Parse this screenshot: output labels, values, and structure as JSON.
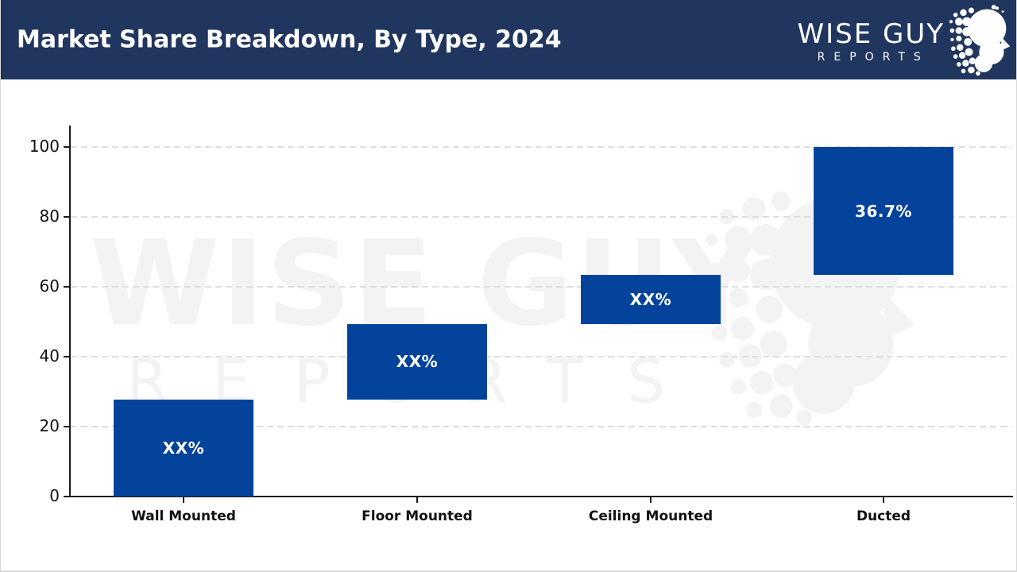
{
  "header": {
    "title": "Market Share Breakdown, By Type, 2024"
  },
  "logo": {
    "line1": "WISE GUY",
    "line2": "REPORTS",
    "icon": "dotted-face-profile-icon"
  },
  "watermark": {
    "line1": "WISE GUY",
    "line2": "REPORTS",
    "icon": "dotted-face-profile-icon"
  },
  "colors": {
    "header_bg": "#21365E",
    "bar": "#04439B",
    "grid": "#dedede",
    "axis": "#1a1a1a",
    "watermark": "#f3f3f3",
    "bar_label_text": "#ffffff",
    "title_text": "#ffffff"
  },
  "chart_data": {
    "type": "bar",
    "style": "waterfall",
    "title": "Market Share Breakdown, By Type, 2024",
    "categories": [
      "Wall Mounted",
      "Floor Mounted",
      "Ceiling Mounted",
      "Ducted"
    ],
    "segments": [
      {
        "category": "Wall Mounted",
        "start": 0,
        "end": 27.7,
        "value": 27.7,
        "label": "XX%"
      },
      {
        "category": "Floor Mounted",
        "start": 27.7,
        "end": 49.4,
        "value": 21.7,
        "label": "XX%"
      },
      {
        "category": "Ceiling Mounted",
        "start": 49.4,
        "end": 63.3,
        "value": 13.9,
        "label": "XX%"
      },
      {
        "category": "Ducted",
        "start": 63.3,
        "end": 100,
        "value": 36.7,
        "label": "36.7%"
      }
    ],
    "xlabel": "",
    "ylabel": "",
    "ylim": [
      0,
      100
    ],
    "yticks": [
      0,
      20,
      40,
      60,
      80,
      100
    ],
    "grid": "dashed-horizontal",
    "legend": "none"
  }
}
